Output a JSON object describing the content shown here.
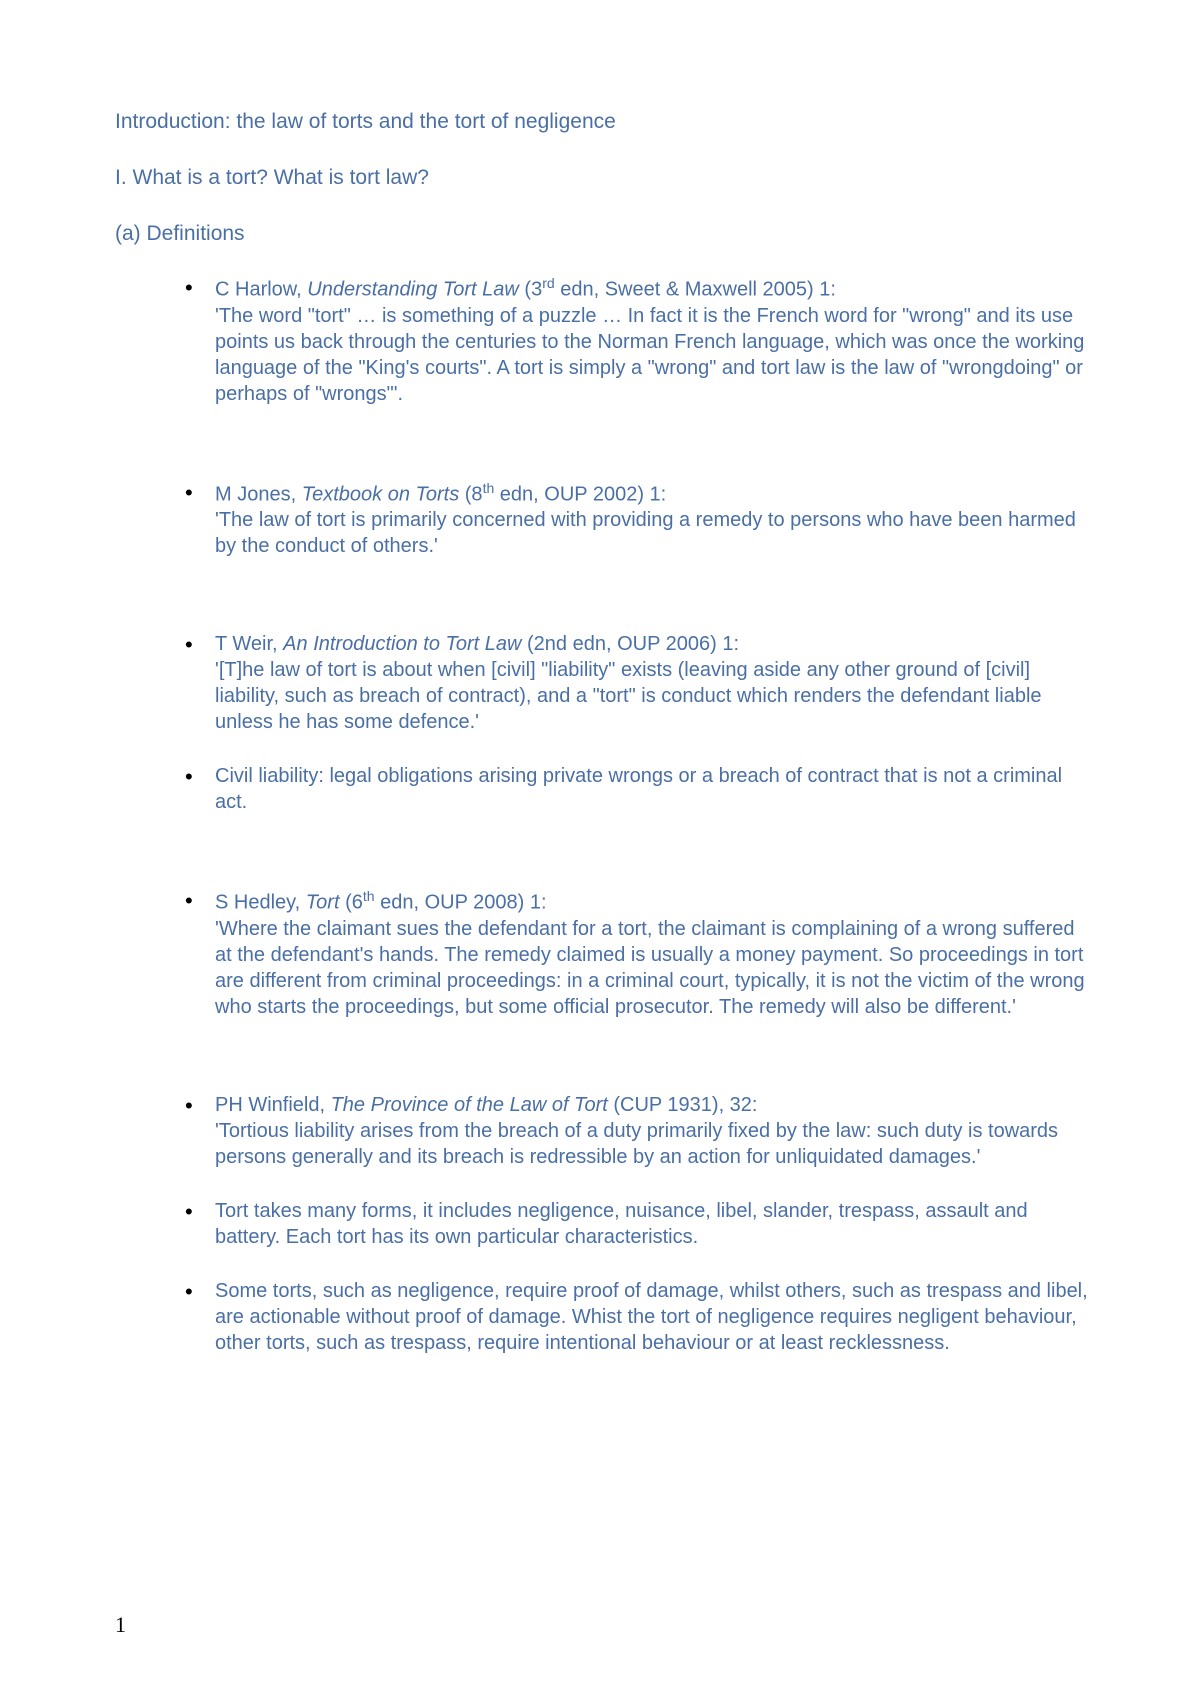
{
  "colors": {
    "text": "#4a6fa5",
    "bullet": "#000000",
    "background": "#ffffff",
    "page_number": "#000000"
  },
  "typography": {
    "body_fontsize": 20,
    "heading_fontsize": 21,
    "font_family": "Arial"
  },
  "headings": {
    "main": "Introduction: the law of torts and the tort of negligence",
    "section": "I. What is a tort? What is tort law?",
    "subsection": "(a) Definitions"
  },
  "items": [
    {
      "author": "C Harlow, ",
      "title": "Understanding Tort Law",
      "edition_prefix": " (3",
      "edition_sup": "rd",
      "citation_rest": " edn, Sweet & Maxwell 2005) 1:",
      "body": "'The word \"tort\" … is something of a puzzle … In fact it is the French word for \"wrong\" and its use points us back through the centuries to the Norman French language, which was once the working language of the \"King's courts\". A tort is simply a \"wrong\" and tort law is the law of \"wrongdoing\" or perhaps of \"wrongs\"'.",
      "gap": "large"
    },
    {
      "author": "M Jones, ",
      "title": "Textbook on Torts",
      "edition_prefix": " (8",
      "edition_sup": "th",
      "citation_rest": " edn, OUP 2002) 1:",
      "body": "'The law of tort is primarily concerned with providing a remedy to persons who have been harmed by the conduct of others.'",
      "gap": "large"
    },
    {
      "author": "T Weir, ",
      "title": "An Introduction to Tort Law",
      "edition_prefix": " (2nd edn, OUP 2006) 1:",
      "edition_sup": "",
      "citation_rest": "",
      "body": "'[T]he law of tort is about when [civil] \"liability\" exists (leaving aside any other ground of [civil] liability, such as breach of contract), and a \"tort\" is conduct which renders the defendant liable unless he has some defence.'",
      "gap": "normal"
    },
    {
      "plain": "Civil liability: legal obligations arising private wrongs or a breach of contract that is not a criminal act.",
      "gap": "large"
    },
    {
      "author": "S Hedley, ",
      "title": "Tort",
      "edition_prefix": " (6",
      "edition_sup": "th",
      "citation_rest": " edn, OUP 2008) 1:",
      "body": "'Where the claimant sues the defendant for a tort, the claimant is complaining of a wrong suffered at the defendant's hands. The remedy claimed is usually a money payment. So proceedings in tort are different from criminal proceedings: in a criminal court, typically, it is not the victim of the wrong who starts the proceedings, but some official prosecutor. The remedy will also be different.'",
      "gap": "large"
    },
    {
      "author": "PH Winfield, ",
      "title": "The Province of the Law of Tort",
      "edition_prefix": " (CUP 1931), 32:",
      "edition_sup": "",
      "citation_rest": "",
      "body": "'Tortious liability arises from the breach of a duty primarily fixed by the law: such duty is towards persons generally and its breach is redressible by an action for unliquidated damages.'",
      "gap": "normal"
    },
    {
      "plain": "Tort takes many forms, it includes negligence, nuisance, libel, slander, trespass, assault and battery. Each tort has its own particular characteristics.",
      "gap": "normal"
    },
    {
      "plain": " Some torts, such as negligence, require proof of damage, whilst others, such as trespass and libel, are actionable without proof of damage. Whist the tort of negligence requires negligent behaviour, other torts, such as trespass, require intentional behaviour or at least recklessness.",
      "gap": "normal"
    }
  ],
  "page_number": "1"
}
